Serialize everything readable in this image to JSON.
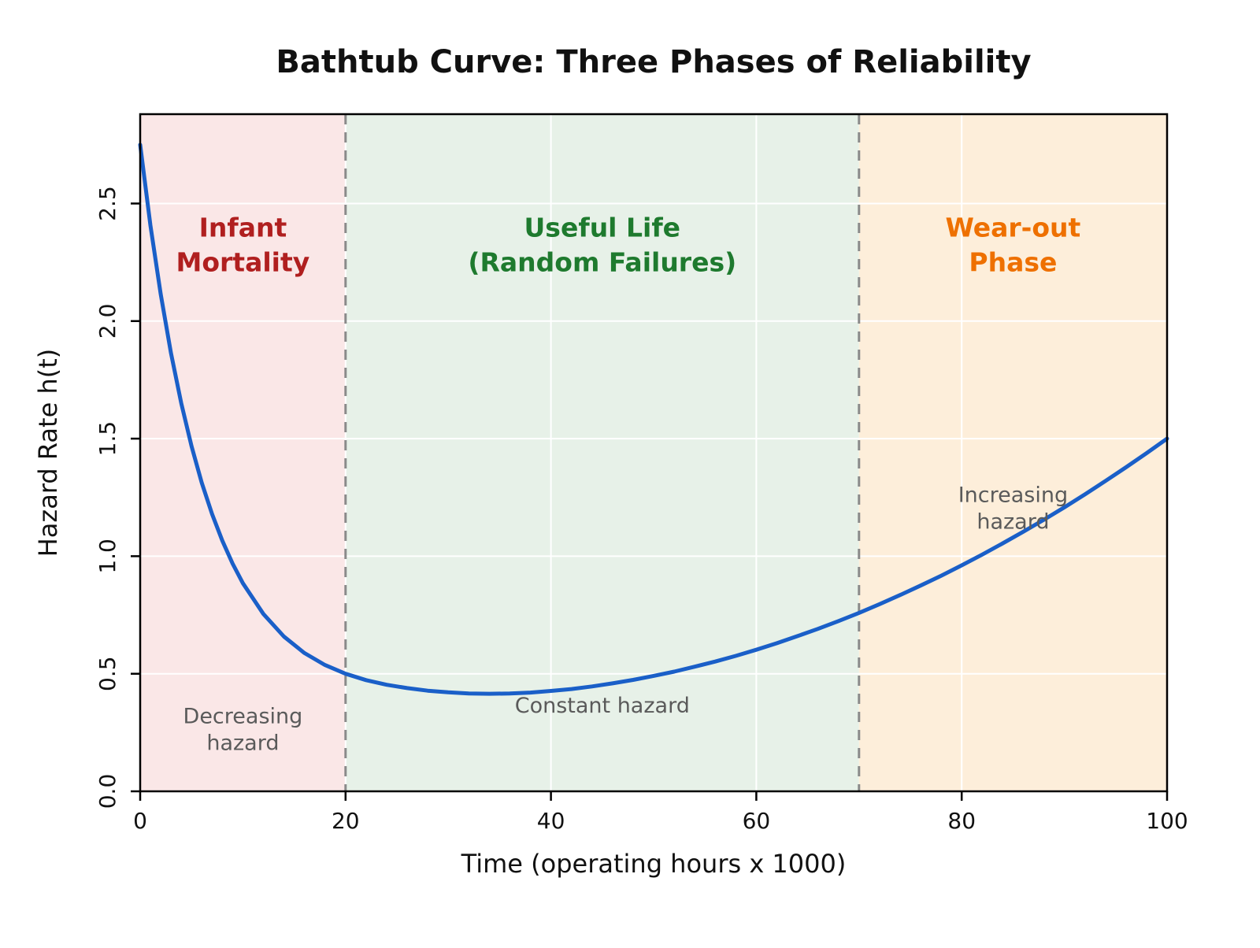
{
  "chart_data": {
    "type": "line",
    "title": "Bathtub Curve: Three Phases of Reliability",
    "xlabel": "Time (operating hours x 1000)",
    "ylabel": "Hazard Rate h(t)",
    "xlim": [
      0,
      100
    ],
    "ylim": [
      0,
      2.88
    ],
    "xticks": [
      0,
      20,
      40,
      60,
      80,
      100
    ],
    "xtick_labels": [
      "0",
      "20",
      "40",
      "60",
      "80",
      "100"
    ],
    "yticks": [
      0,
      0.5,
      1.0,
      1.5,
      2.0,
      2.5
    ],
    "ytick_labels": [
      "0.0",
      "0.5",
      "1.0",
      "1.5",
      "2.0",
      "2.5"
    ],
    "grid": true,
    "grid_color": "#ffffff",
    "series": [
      {
        "name": "Hazard rate h(t)",
        "color": "#1a5fc8",
        "width": 5,
        "x": [
          0,
          1,
          2,
          3,
          4,
          5,
          6,
          7,
          8,
          9,
          10,
          12,
          14,
          16,
          18,
          20,
          22,
          24,
          26,
          28,
          30,
          32,
          34,
          36,
          38,
          40,
          42,
          44,
          46,
          48,
          50,
          52,
          54,
          56,
          58,
          60,
          62,
          64,
          66,
          68,
          70,
          72,
          74,
          76,
          78,
          80,
          82,
          84,
          86,
          88,
          90,
          92,
          94,
          96,
          98,
          100
        ],
        "y": [
          2.75,
          2.407,
          2.114,
          1.864,
          1.65,
          1.468,
          1.312,
          1.179,
          1.066,
          0.968,
          0.885,
          0.754,
          0.658,
          0.588,
          0.537,
          0.5,
          0.473,
          0.453,
          0.439,
          0.428,
          0.421,
          0.416,
          0.415,
          0.416,
          0.42,
          0.427,
          0.435,
          0.446,
          0.459,
          0.474,
          0.491,
          0.509,
          0.53,
          0.552,
          0.576,
          0.602,
          0.63,
          0.66,
          0.691,
          0.724,
          0.759,
          0.796,
          0.835,
          0.875,
          0.917,
          0.961,
          1.007,
          1.055,
          1.104,
          1.155,
          1.208,
          1.263,
          1.32,
          1.378,
          1.438,
          1.5
        ]
      }
    ],
    "dividers": {
      "x": [
        20,
        70
      ],
      "color": "#8a8a8a",
      "style": "dashed"
    },
    "regions": [
      {
        "name": "infant-mortality",
        "x0": 0,
        "x1": 20,
        "fill": "#fae7e7",
        "label": {
          "lines": [
            "Infant",
            "Mortality"
          ],
          "color": "#b01f1f",
          "x": 10,
          "y": 2.36
        },
        "note": {
          "lines": [
            "Decreasing",
            "hazard"
          ],
          "color": "#5a5a5a",
          "x": 10,
          "y": 0.29
        }
      },
      {
        "name": "useful-life",
        "x0": 20,
        "x1": 70,
        "fill": "#e7f1e8",
        "label": {
          "lines": [
            "Useful Life",
            "(Random Failures)"
          ],
          "color": "#1e7a2e",
          "x": 45,
          "y": 2.36
        },
        "note": {
          "lines": [
            "Constant hazard"
          ],
          "color": "#5a5a5a",
          "x": 45,
          "y": 0.335
        }
      },
      {
        "name": "wear-out",
        "x0": 70,
        "x1": 100,
        "fill": "#fdeeda",
        "label": {
          "lines": [
            "Wear-out",
            "Phase"
          ],
          "color": "#ee7000",
          "x": 85,
          "y": 2.36
        },
        "note": {
          "lines": [
            "Increasing",
            "hazard"
          ],
          "color": "#5a5a5a",
          "x": 85,
          "y": 1.23
        }
      }
    ]
  }
}
